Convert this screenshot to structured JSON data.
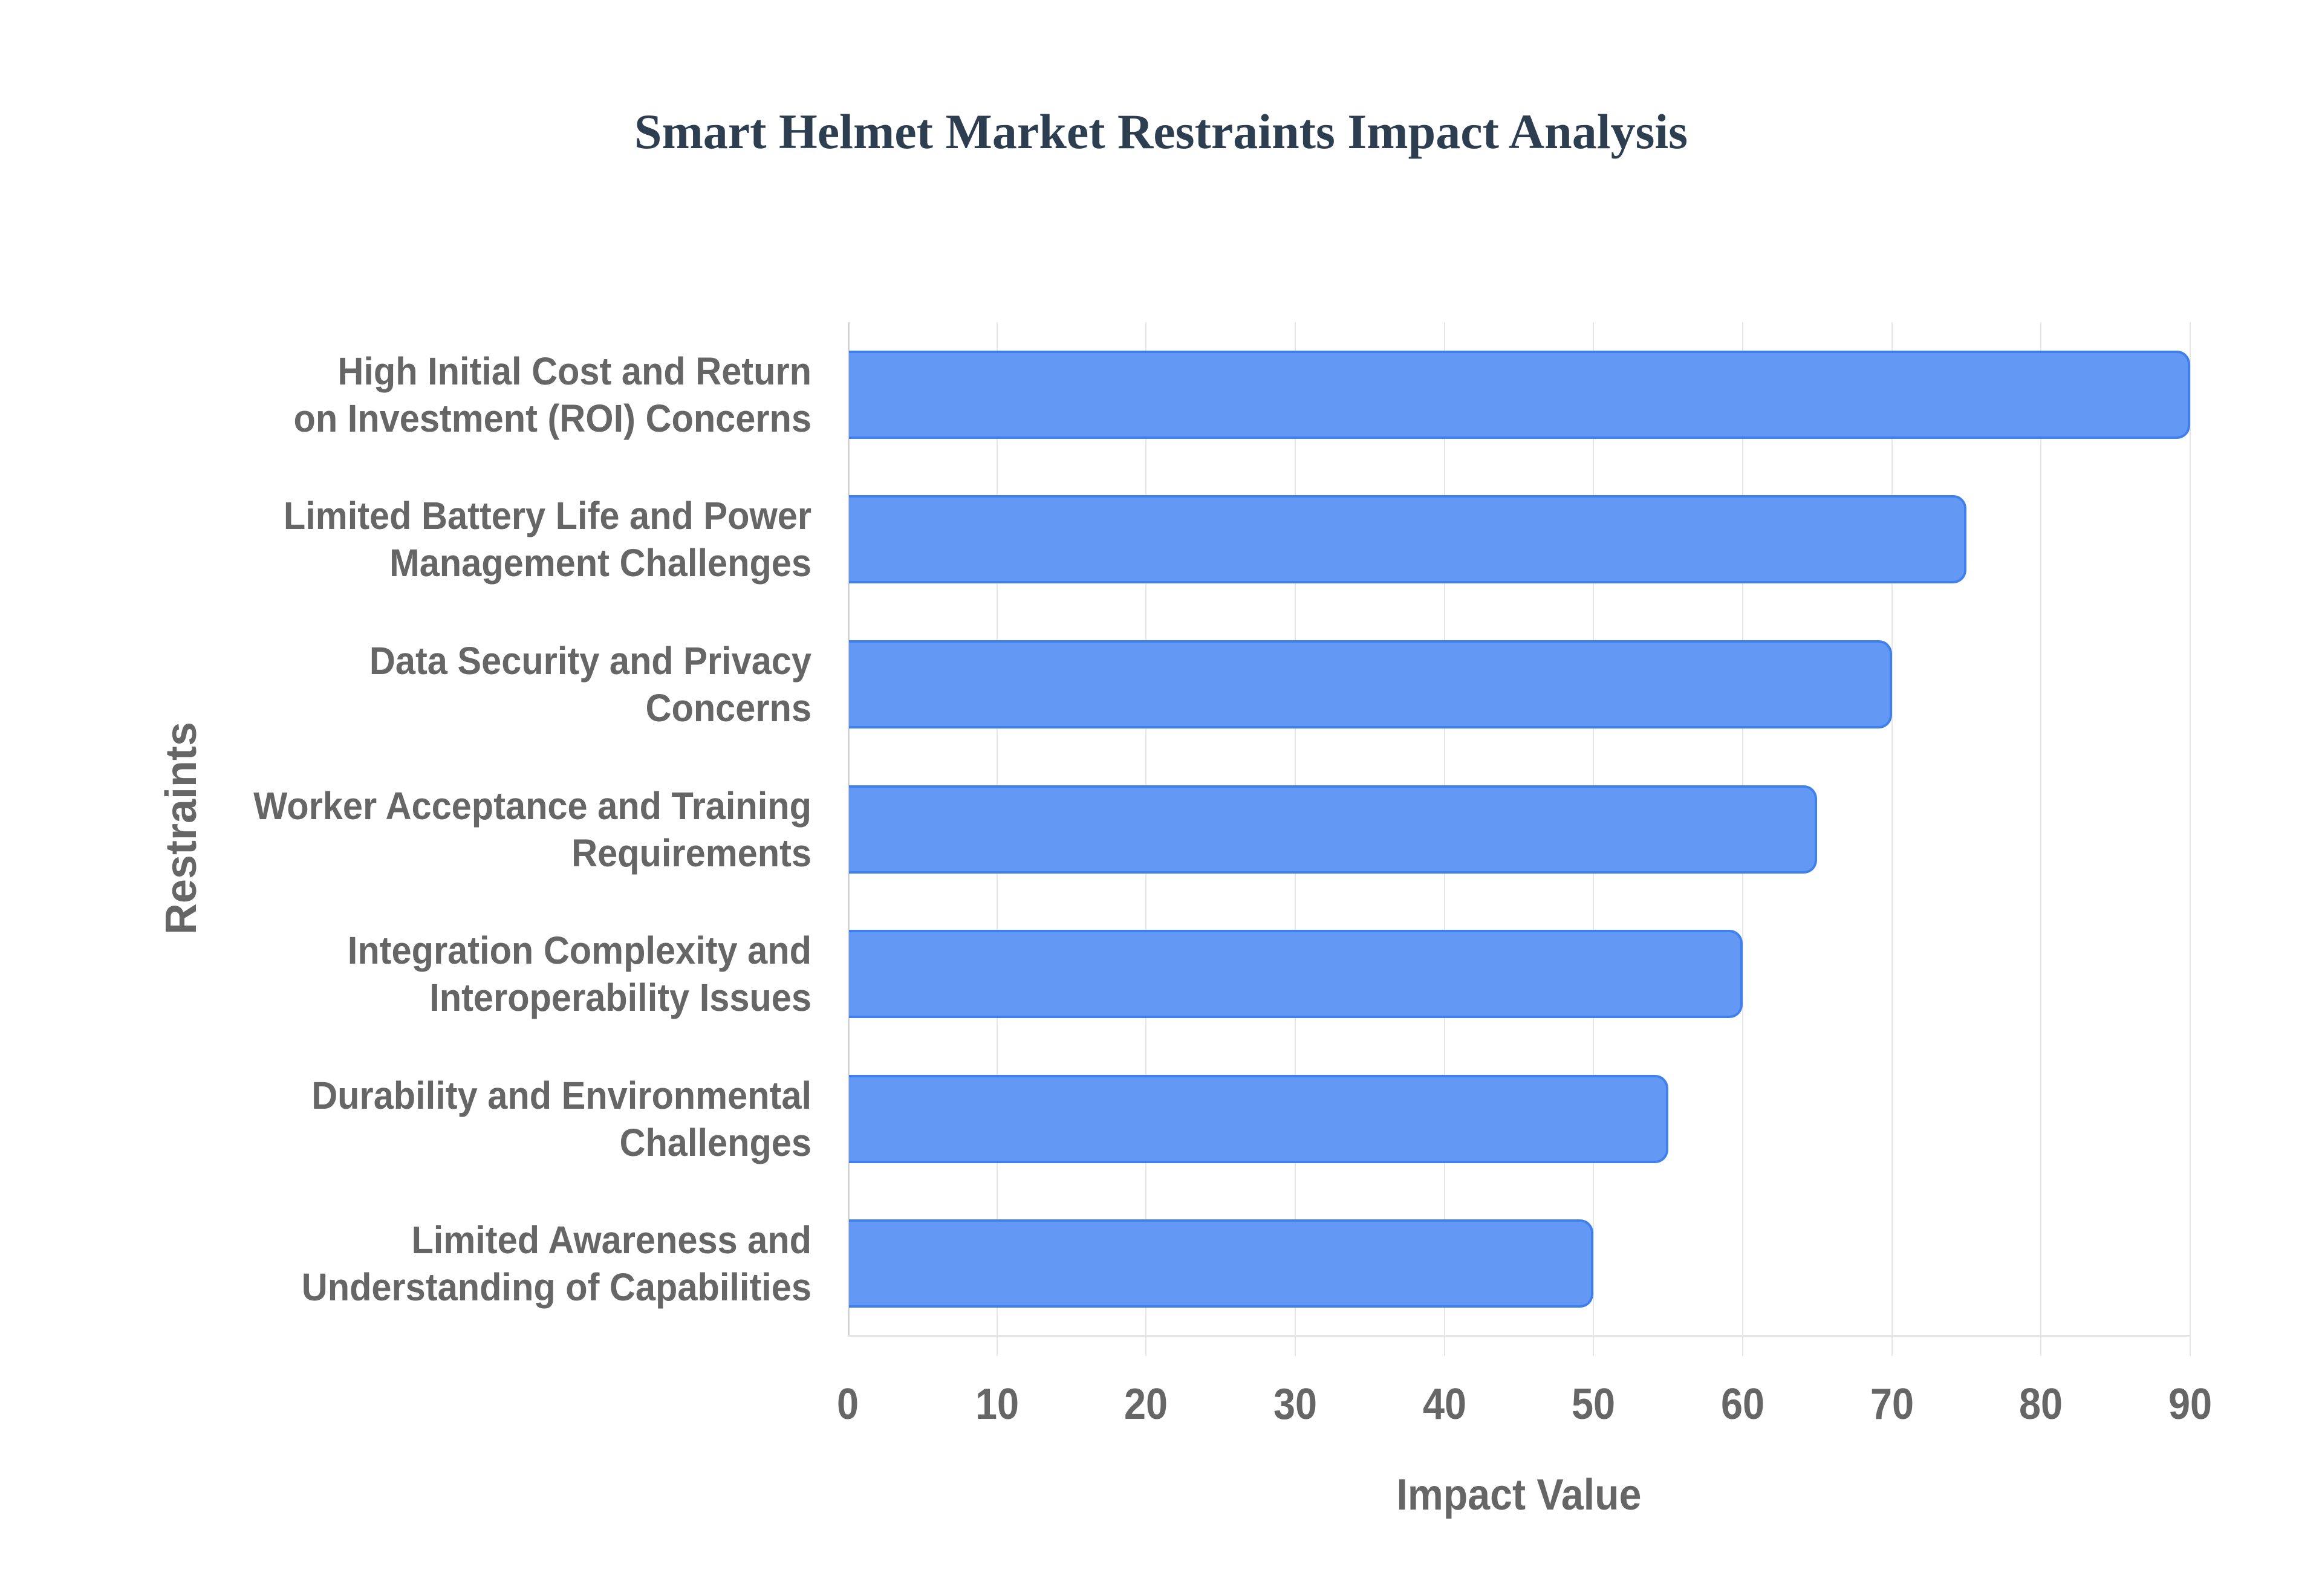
{
  "chart_data": {
    "type": "bar",
    "orientation": "horizontal",
    "title": "Smart Helmet Market Restraints Impact Analysis",
    "xlabel": "Impact Value",
    "ylabel": "Restraints",
    "categories": [
      "High Initial Cost and Return on Investment (ROI) Concerns",
      "Limited Battery Life and Power Management Challenges",
      "Data Security and Privacy Concerns",
      "Worker Acceptance and Training Requirements",
      "Integration Complexity and Interoperability Issues",
      "Durability and Environmental Challenges",
      "Limited Awareness and Understanding of Capabilities"
    ],
    "values": [
      90,
      75,
      70,
      65,
      60,
      55,
      50
    ],
    "xlim": [
      0,
      90
    ],
    "x_ticks": [
      0,
      10,
      20,
      30,
      40,
      50,
      60,
      70,
      80,
      90
    ],
    "grid": true,
    "legend": null,
    "bar_color": "#6399f5",
    "bar_border_color": "#3f80ec"
  },
  "labels": {
    "title": "Smart Helmet Market Restraints Impact Analysis",
    "x_title": "Impact Value",
    "y_title": "Restraints",
    "categories": [
      {
        "line1": "High Initial Cost and Return",
        "line2": "on Investment (ROI) Concerns"
      },
      {
        "line1": "Limited Battery Life and Power",
        "line2": "Management Challenges"
      },
      {
        "line1": "Data Security and Privacy",
        "line2": "Concerns"
      },
      {
        "line1": "Worker Acceptance and Training",
        "line2": "Requirements"
      },
      {
        "line1": "Integration Complexity and",
        "line2": "Interoperability Issues"
      },
      {
        "line1": "Durability and Environmental",
        "line2": "Challenges"
      },
      {
        "line1": "Limited Awareness and",
        "line2": "Understanding of Capabilities"
      }
    ],
    "ticks": [
      "0",
      "10",
      "20",
      "30",
      "40",
      "50",
      "60",
      "70",
      "80",
      "90"
    ]
  },
  "colors": {
    "title": "#2c3e50",
    "axis_text": "#666666",
    "gridline": "#e6e6e6"
  }
}
